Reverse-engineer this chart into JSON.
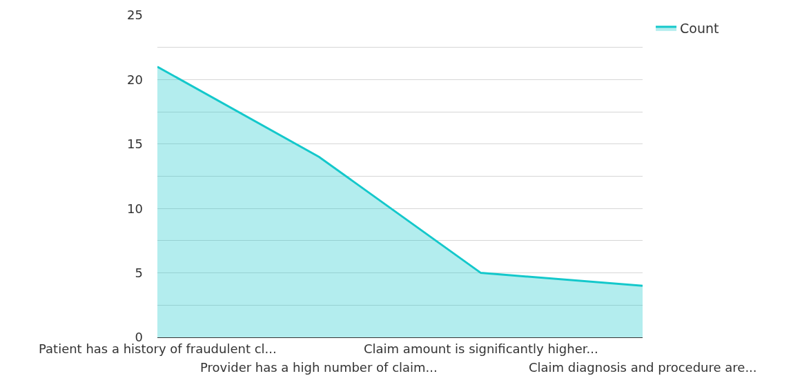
{
  "chart_data": {
    "type": "area",
    "categories": [
      "Patient has a history of fraudulent cl...",
      "Provider has a high number of claim...",
      "Claim amount is significantly higher...",
      "Claim diagnosis and procedure are..."
    ],
    "series": [
      {
        "name": "Count",
        "color": "#14c8cb",
        "values": [
          21,
          14,
          5,
          4
        ]
      }
    ],
    "ylim": [
      0,
      25
    ],
    "yticks": [
      0,
      {
        "value": 2.5,
        "label": null
      },
      5,
      {
        "value": 7.5,
        "label": null
      },
      10,
      {
        "value": 12.5,
        "label": null
      },
      15,
      {
        "value": 17.5,
        "label": null
      },
      20,
      {
        "value": 22.5,
        "label": null
      },
      25
    ],
    "grid": "y",
    "legend": "top right"
  }
}
